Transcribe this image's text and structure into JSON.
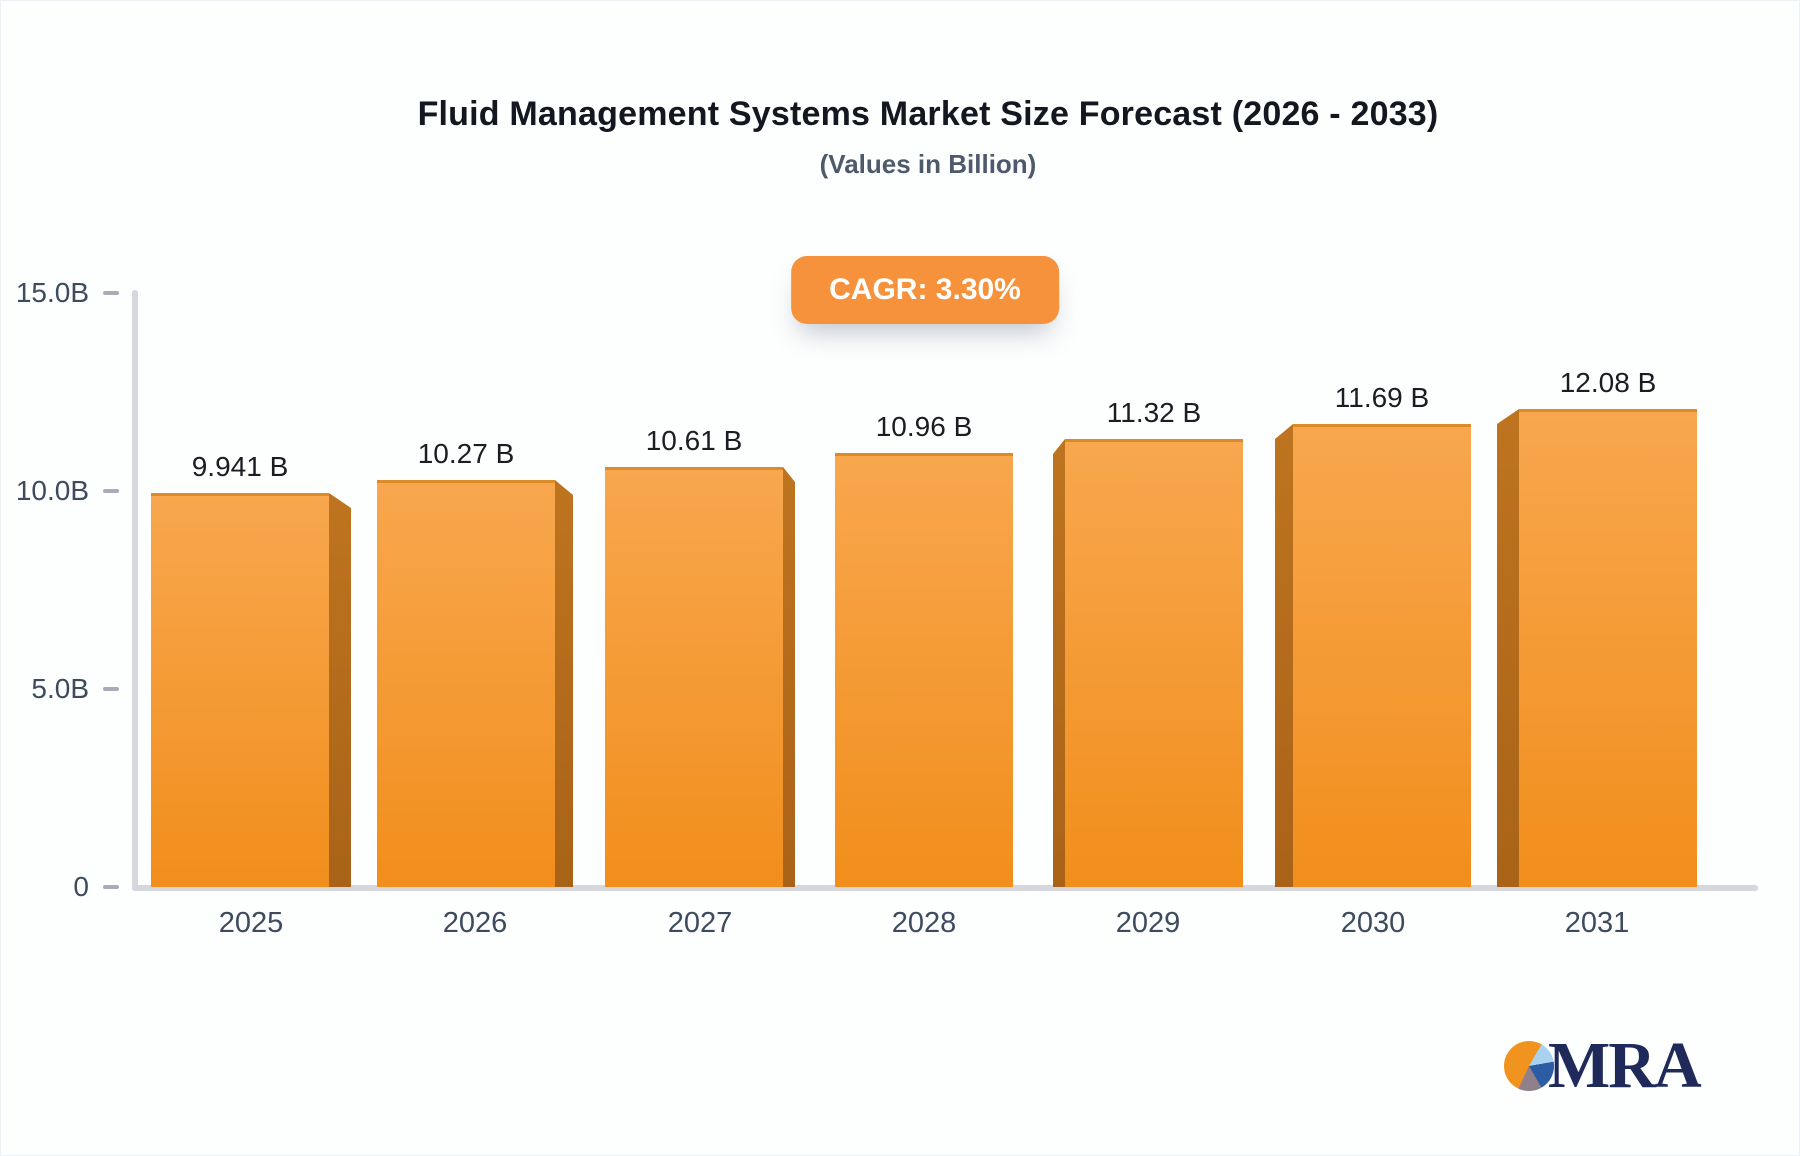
{
  "header": {
    "title": "Fluid Management Systems Market Size Forecast (2026 - 2033)",
    "subtitle": "(Values in Billion)",
    "cagr_badge": "CAGR: 3.30%",
    "badge_color": "#F6923C"
  },
  "chart_data": {
    "type": "bar",
    "title": "Fluid Management Systems Market Size Forecast (2026 - 2033)",
    "subtitle": "(Values in Billion)",
    "annotation": "CAGR: 3.30%",
    "unit": "Billion USD",
    "categories": [
      "2025",
      "2026",
      "2027",
      "2028",
      "2029",
      "2030",
      "2031"
    ],
    "values": [
      9.941,
      10.27,
      10.61,
      10.96,
      11.32,
      11.69,
      12.08
    ],
    "value_labels": [
      "9.941 B",
      "10.27 B",
      "10.61 B",
      "10.96 B",
      "11.32 B",
      "11.69 B",
      "12.08 B"
    ],
    "ylim": [
      0,
      15
    ],
    "yticks": [
      {
        "value": 0,
        "label": "0"
      },
      {
        "value": 5,
        "label": "5.0B"
      },
      {
        "value": 10,
        "label": "10.0B"
      },
      {
        "value": 15,
        "label": "15.0B"
      }
    ],
    "grid": false,
    "legend": "none",
    "bar_style": "3d",
    "colors": {
      "bar_top": "#F8A74E",
      "bar_bottom": "#F18E1C",
      "bar_side": "#B26A1C",
      "axis_line": "#D5D7DC",
      "tick": "#A7ACB6",
      "axis_label": "#3E4B5E",
      "value_label": "#1B1D22"
    }
  },
  "footer": {
    "logo_text": "MRA",
    "logo_colors": {
      "orange": "#F0941F",
      "light_blue": "#A8D2EE",
      "blue": "#2B5CA4",
      "gray": "#8F8089",
      "text": "#1F2A5B"
    }
  }
}
